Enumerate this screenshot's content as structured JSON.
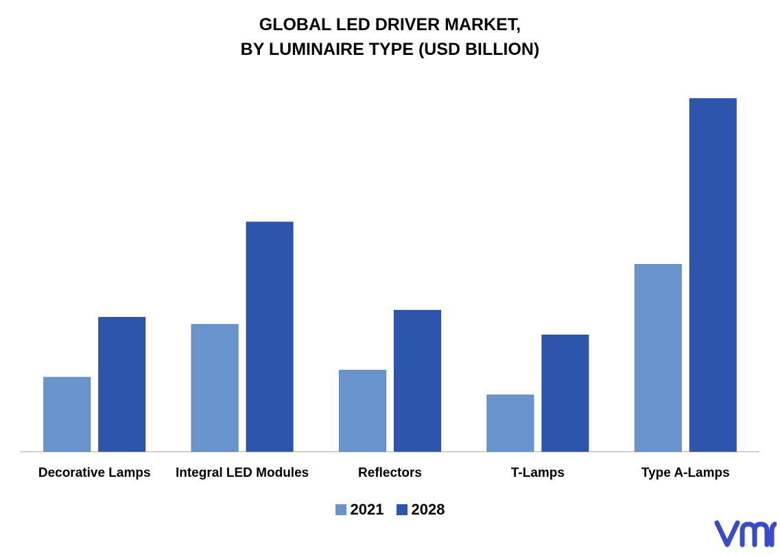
{
  "title": {
    "line1": "GLOBAL LED DRIVER MARKET,",
    "line2": "BY LUMINAIRE TYPE (USD BILLION)"
  },
  "chart_data": {
    "type": "bar",
    "title": "GLOBAL LED DRIVER MARKET, BY LUMINAIRE TYPE (USD BILLION)",
    "categories": [
      "Decorative Lamps",
      "Integral LED Modules",
      "Reflectors",
      "T-Lamps",
      "Type A-Lamps"
    ],
    "series": [
      {
        "name": "2021",
        "color": "#6a95cc",
        "values": [
          2.1,
          3.6,
          2.3,
          1.6,
          5.3
        ]
      },
      {
        "name": "2028",
        "color": "#2e55ad",
        "values": [
          3.8,
          6.5,
          4.0,
          3.3,
          10.0
        ]
      }
    ],
    "ylim": [
      0,
      10.5
    ],
    "grid": false,
    "y_axis_visible": false,
    "legend_position": "bottom"
  },
  "logo": {
    "text": "vmr",
    "icon": "vmr-logo-icon",
    "color": "#3b4bc8"
  }
}
